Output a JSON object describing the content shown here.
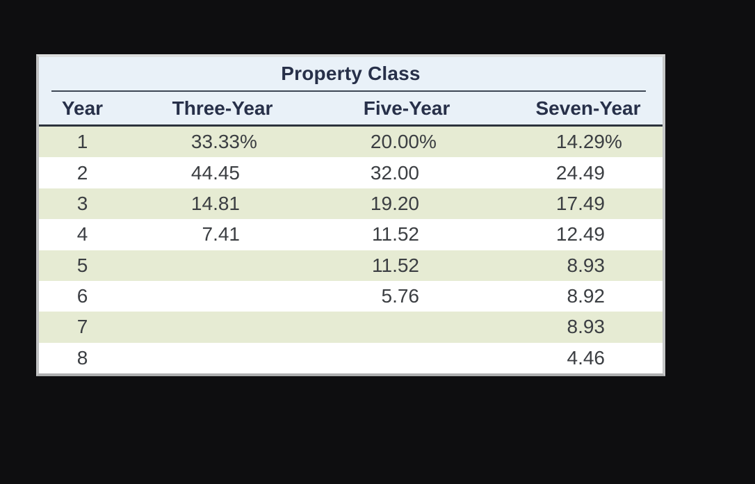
{
  "page": {
    "background_color": "#0e0e10"
  },
  "table": {
    "title": "Property Class",
    "columns": [
      "Year",
      "Three-Year",
      "Five-Year",
      "Seven-Year"
    ],
    "rows": [
      {
        "year": "1",
        "three": "33.33%",
        "five": "20.00%",
        "seven": "14.29%"
      },
      {
        "year": "2",
        "three": "44.45",
        "five": "32.00",
        "seven": "24.49"
      },
      {
        "year": "3",
        "three": "14.81",
        "five": "19.20",
        "seven": "17.49"
      },
      {
        "year": "4",
        "three": "7.41",
        "five": "11.52",
        "seven": "12.49"
      },
      {
        "year": "5",
        "three": "",
        "five": "11.52",
        "seven": "8.93"
      },
      {
        "year": "6",
        "three": "",
        "five": "5.76",
        "seven": "8.92"
      },
      {
        "year": "7",
        "three": "",
        "five": "",
        "seven": "8.93"
      },
      {
        "year": "8",
        "three": "",
        "five": "",
        "seven": "4.46"
      }
    ],
    "colors": {
      "header_background": "#e9f1f8",
      "row_alternate_background": "#e6ebd3",
      "row_background": "#ffffff",
      "header_text": "#273049",
      "body_text": "#3b3e42",
      "rule": "#2c333c"
    }
  },
  "chart_data": {
    "type": "table",
    "title": "Property Class",
    "columns": [
      "Year",
      "Three-Year",
      "Five-Year",
      "Seven-Year"
    ],
    "cells": [
      [
        "1",
        "33.33%",
        "20.00%",
        "14.29%"
      ],
      [
        "2",
        "44.45",
        "32.00",
        "24.49"
      ],
      [
        "3",
        "14.81",
        "19.20",
        "17.49"
      ],
      [
        "4",
        "7.41",
        "11.52",
        "12.49"
      ],
      [
        "5",
        "",
        "11.52",
        "8.93"
      ],
      [
        "6",
        "",
        "5.76",
        "8.92"
      ],
      [
        "7",
        "",
        "",
        "8.93"
      ],
      [
        "8",
        "",
        "",
        "4.46"
      ]
    ]
  }
}
